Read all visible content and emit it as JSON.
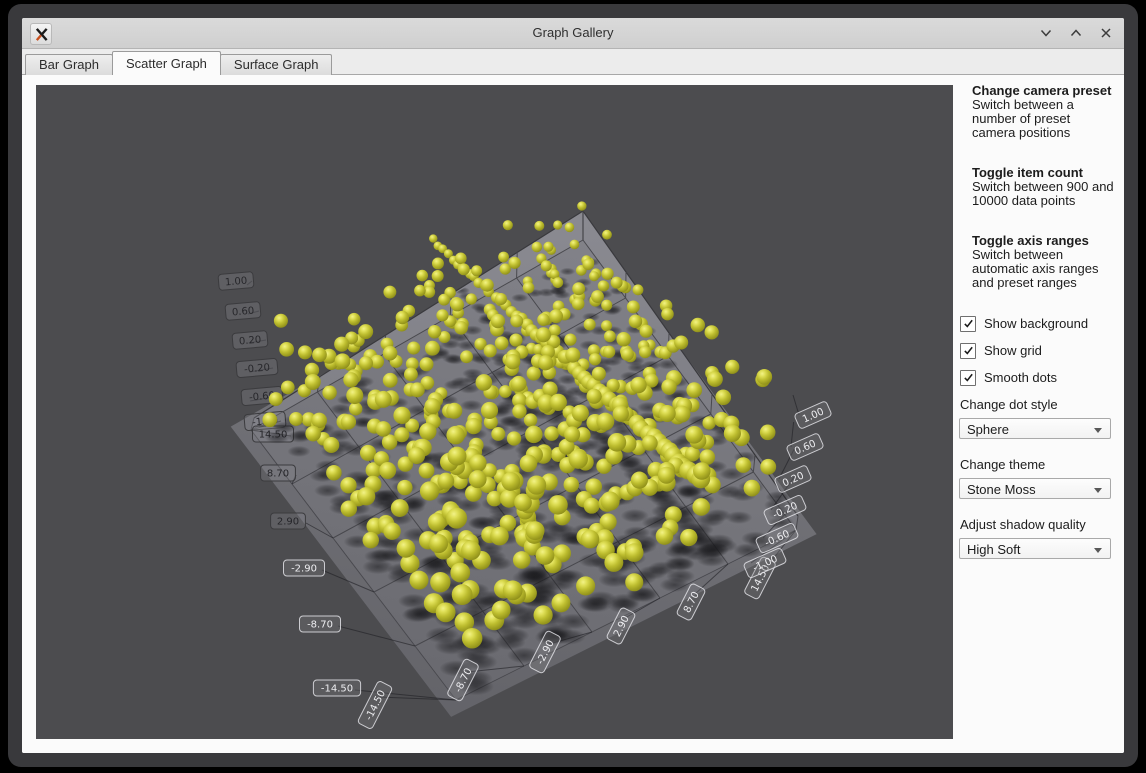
{
  "window": {
    "title": "Graph Gallery",
    "app_icon": "x11-logo-icon",
    "controls": {
      "minimize": "chevron-down",
      "maximize": "chevron-up",
      "close": "x"
    }
  },
  "tabs": [
    {
      "label": "Bar Graph",
      "active": false
    },
    {
      "label": "Scatter Graph",
      "active": true
    },
    {
      "label": "Surface Graph",
      "active": false
    }
  ],
  "sidebar": {
    "buttons": [
      {
        "title": "Change camera preset",
        "description": "Switch between a number of preset camera positions"
      },
      {
        "title": "Toggle item count",
        "description": "Switch between 900 and 10000 data points"
      },
      {
        "title": "Toggle axis ranges",
        "description": "Switch between automatic axis ranges and preset ranges"
      }
    ],
    "checkboxes": [
      {
        "label": "Show background",
        "checked": true
      },
      {
        "label": "Show grid",
        "checked": true
      },
      {
        "label": "Smooth dots",
        "checked": true
      }
    ],
    "dropdowns": [
      {
        "label": "Change dot style",
        "value": "Sphere"
      },
      {
        "label": "Change theme",
        "value": "Stone Moss"
      },
      {
        "label": "Adjust shadow quality",
        "value": "High Soft"
      }
    ]
  },
  "chart_data": {
    "type": "scatter",
    "projection": "3d",
    "title": "",
    "point_count": 900,
    "dot_style": "Sphere",
    "theme": "Stone Moss",
    "shadow_quality": "High Soft",
    "show_background": true,
    "show_grid": true,
    "smooth_dots": true,
    "point_color": "#b8b82a",
    "background_color": "#4c4c4f",
    "floor_color": "#76767c",
    "axes": {
      "x_range": [
        -14.5,
        14.5
      ],
      "y_range": [
        -1.0,
        1.0
      ],
      "z_range": [
        -14.5,
        14.5
      ],
      "x_ticks": [
        "14.50",
        "8.70",
        "2.90",
        "-2.90",
        "-8.70",
        "-14.50"
      ],
      "y_left_ticks": [
        "1.00",
        "0.60",
        "0.20",
        "-0.20",
        "-0.60",
        "-1.00"
      ],
      "y_right_ticks": [
        "1.00",
        "0.60",
        "0.20",
        "-0.20",
        "-0.60",
        "-1.00"
      ],
      "z_ticks": [
        "-14.50",
        "-8.70",
        "-2.90",
        "2.90",
        "8.70",
        "14.50"
      ]
    },
    "description": "About 900 yellow-olive spheres floating above a gray grid floor with soft shadows; one dense diagonal line of spheres runs from the back corner toward the front-right."
  }
}
